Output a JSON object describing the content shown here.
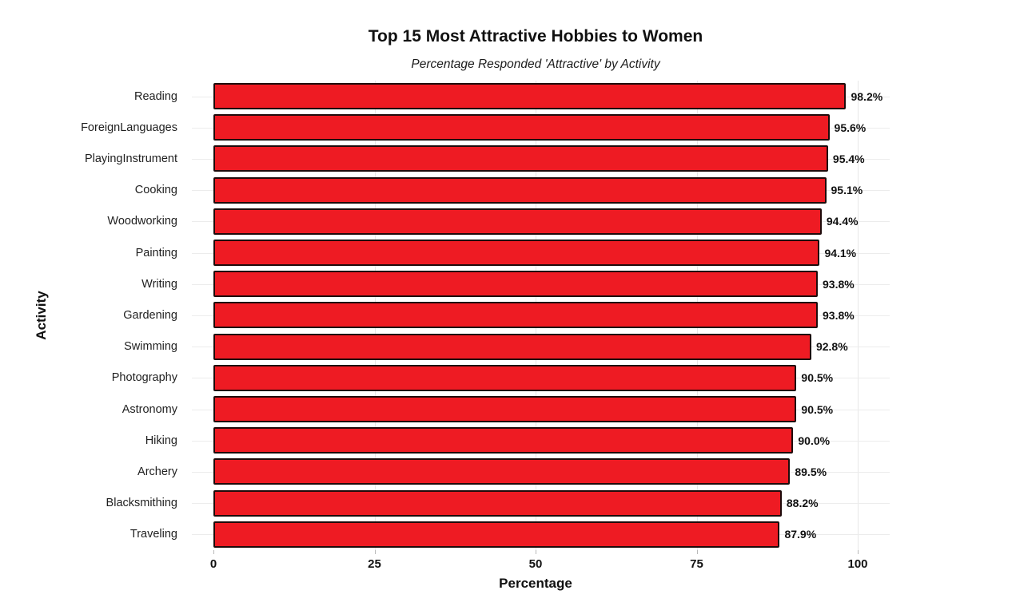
{
  "title": "Top 15 Most Attractive Hobbies to Women",
  "subtitle": "Percentage Responded 'Attractive' by Activity",
  "chart_data": {
    "type": "bar",
    "orientation": "horizontal",
    "title": "Top 15 Most Attractive Hobbies to Women",
    "subtitle": "Percentage Responded 'Attractive' by Activity",
    "xlabel": "Percentage",
    "ylabel": "Activity",
    "categories": [
      "Reading",
      "ForeignLanguages",
      "PlayingInstrument",
      "Cooking",
      "Woodworking",
      "Painting",
      "Writing",
      "Gardening",
      "Swimming",
      "Photography",
      "Astronomy",
      "Hiking",
      "Archery",
      "Blacksmithing",
      "Traveling"
    ],
    "values": [
      98.2,
      95.6,
      95.4,
      95.1,
      94.4,
      94.1,
      93.8,
      93.8,
      92.8,
      90.5,
      90.5,
      90.0,
      89.5,
      88.2,
      87.9
    ],
    "value_labels": [
      "98.2%",
      "95.6%",
      "95.4%",
      "95.1%",
      "94.4%",
      "94.1%",
      "93.8%",
      "93.8%",
      "92.8%",
      "90.5%",
      "90.5%",
      "90.0%",
      "89.5%",
      "88.2%",
      "87.9%"
    ],
    "xticks": [
      0,
      25,
      50,
      75,
      100
    ],
    "xlim": [
      0,
      105
    ],
    "grid": true,
    "legend": "none",
    "bar_color": "#ee1b23",
    "bar_border_color": "#1e0b0b",
    "grid_color": "#ececec",
    "text_color": "#111111"
  }
}
